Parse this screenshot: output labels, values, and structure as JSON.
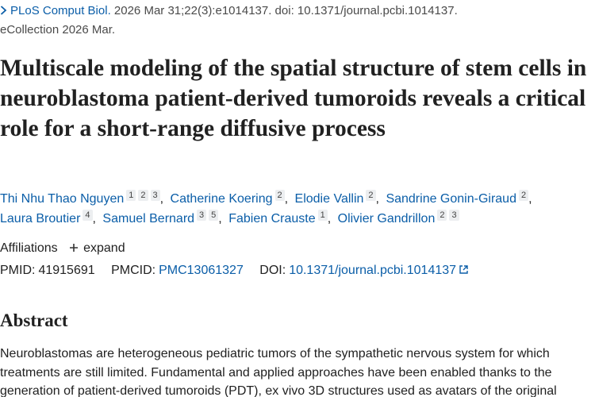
{
  "citation": {
    "journal": "PLoS Comput Biol.",
    "details": "2026 Mar 31;22(3):e1014137. doi: 10.1371/journal.pcbi.1014137.",
    "ecollection": "eCollection 2026 Mar."
  },
  "title": "Multiscale modeling of the spatial structure of stem cells in neuroblastoma patient-derived tumoroids reveals a critical role for a short-range diffusive process",
  "authors": [
    {
      "name": "Thi Nhu Thao Nguyen",
      "affiliations": [
        "1",
        "2",
        "3"
      ]
    },
    {
      "name": "Catherine Koering",
      "affiliations": [
        "2"
      ]
    },
    {
      "name": "Elodie Vallin",
      "affiliations": [
        "2"
      ]
    },
    {
      "name": "Sandrine Gonin-Giraud",
      "affiliations": [
        "2"
      ]
    },
    {
      "name": "Laura Broutier",
      "affiliations": [
        "4"
      ]
    },
    {
      "name": "Samuel Bernard",
      "affiliations": [
        "3",
        "5"
      ]
    },
    {
      "name": "Fabien Crauste",
      "affiliations": [
        "1"
      ]
    },
    {
      "name": "Olivier Gandrillon",
      "affiliations": [
        "2",
        "3"
      ]
    }
  ],
  "affiliations": {
    "label": "Affiliations",
    "expand": "expand"
  },
  "identifiers": {
    "pmid_label": "PMID:",
    "pmid": "41915691",
    "pmcid_label": "PMCID:",
    "pmcid": "PMC13061327",
    "doi_label": "DOI:",
    "doi": "10.1371/journal.pcbi.1014137"
  },
  "abstract": {
    "heading": "Abstract",
    "text": "Neuroblastomas are heterogeneous pediatric tumors of the sympathetic nervous system for which treatments are still limited. Fundamental and applied approaches have been enabled thanks to the generation of patient-derived tumoroids (PDT), ex vivo 3D structures used as avatars of the original"
  }
}
